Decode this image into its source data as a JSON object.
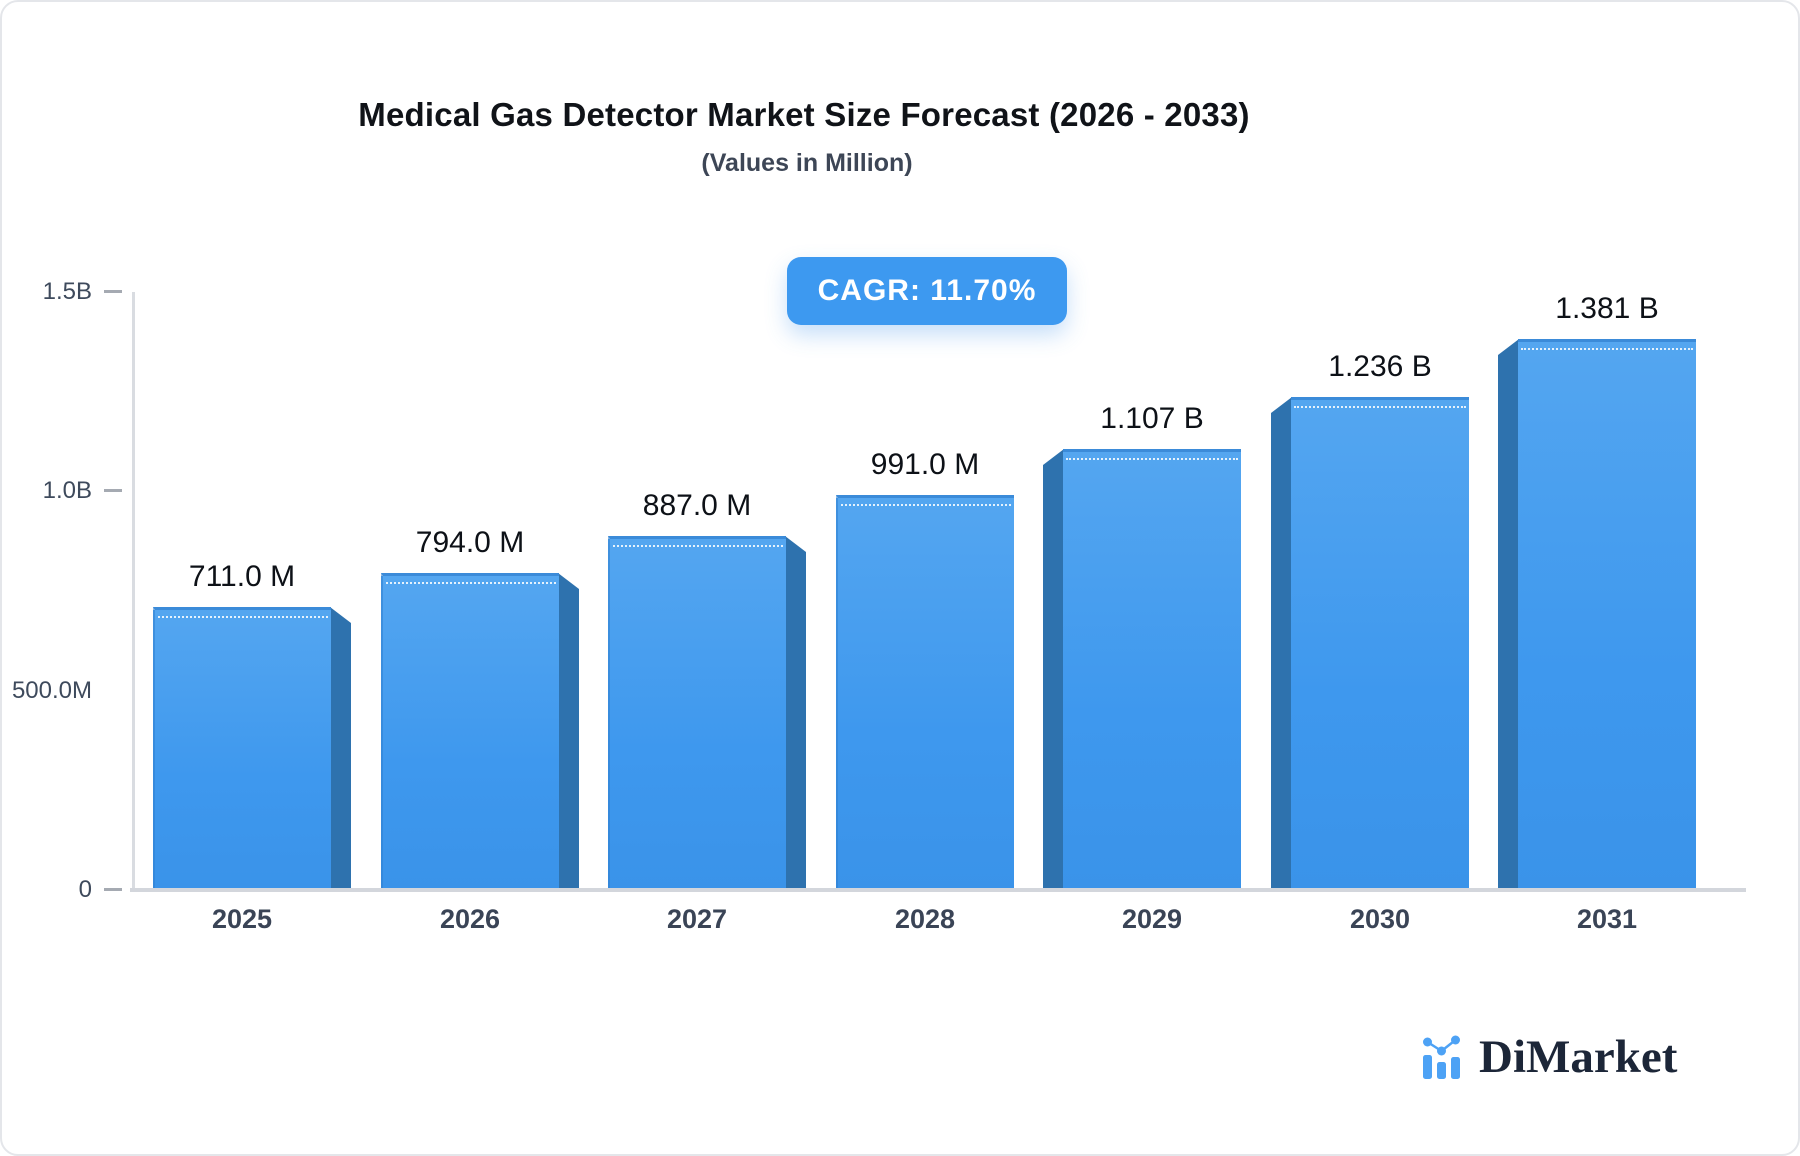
{
  "chart_data": {
    "type": "bar",
    "title": "Medical Gas Detector Market Size Forecast (2026 - 2033)",
    "subtitle": "(Values in Million)",
    "cagr_text": "CAGR: 11.70%",
    "categories": [
      "2025",
      "2026",
      "2027",
      "2028",
      "2029",
      "2030",
      "2031"
    ],
    "values_millions": [
      711,
      794,
      887,
      991,
      1107,
      1236,
      1381
    ],
    "value_labels": [
      "711.0 M",
      "794.0 M",
      "887.0 M",
      "991.0 M",
      "1.107 B",
      "1.236 B",
      "1.381 B"
    ],
    "y_axis": {
      "max": 1500,
      "ticks": [
        {
          "label": "1.5B",
          "value": 1500,
          "dash": true
        },
        {
          "label": "1.0B",
          "value": 1000,
          "dash": true
        },
        {
          "label": "500.0M",
          "value": 500,
          "dash": false
        },
        {
          "label": "0",
          "value": 0,
          "dash": true
        }
      ]
    },
    "grid": false,
    "legend": false,
    "bar_face_top_color": "#54a6f0",
    "bar_face_bottom_color": "#3a93e9",
    "bar_side_color": "#2e72ae",
    "badge_color": "#3d99f0"
  },
  "branding": {
    "logo_text": "DiMarket",
    "logo_icon": "mini-bar-line-chart-icon",
    "logo_icon_color": "#4da2f5",
    "logo_text_color": "#1c2638"
  }
}
